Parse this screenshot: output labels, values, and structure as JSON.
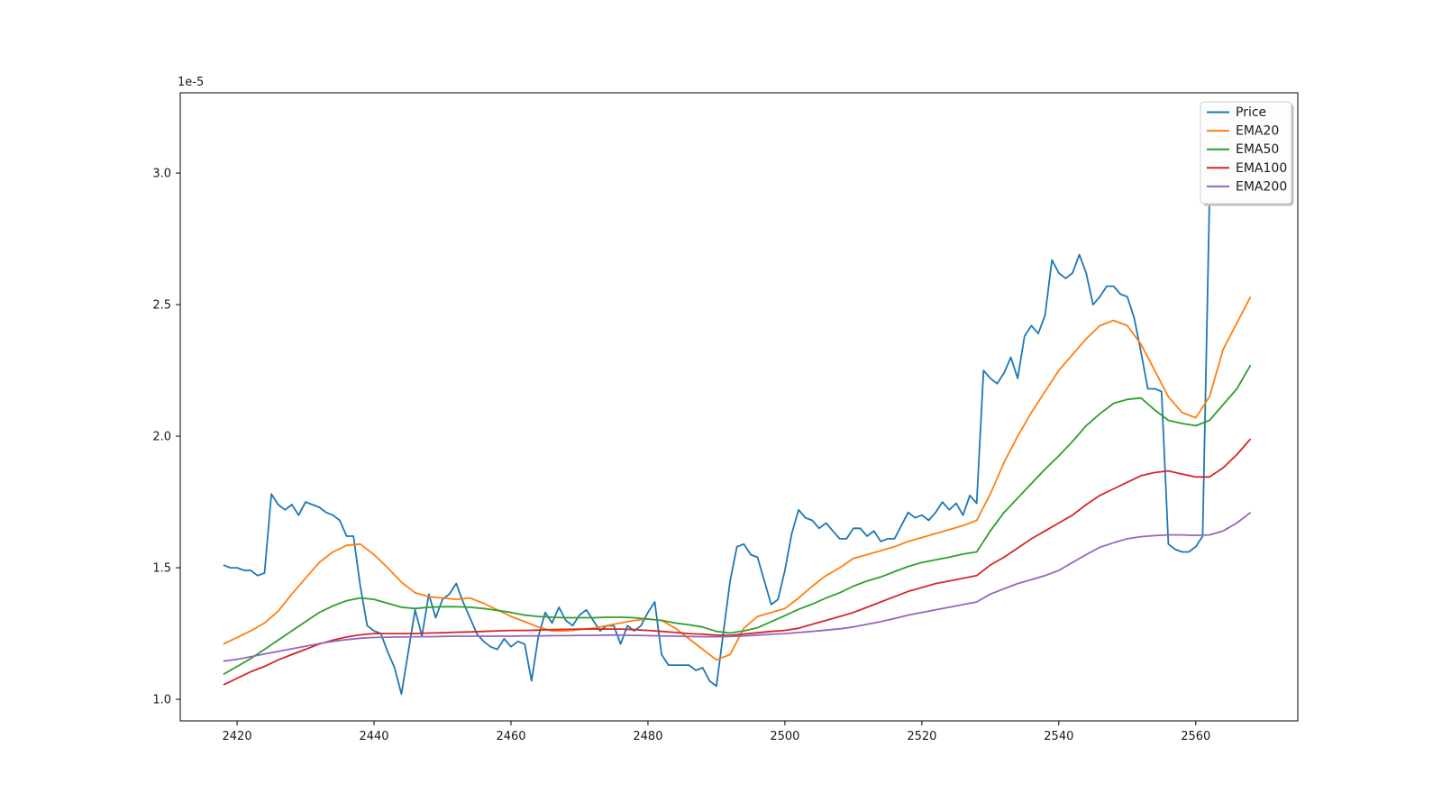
{
  "chart_data": {
    "type": "line",
    "title": "",
    "xlabel": "",
    "ylabel": "",
    "y_offset_label": "1e-5",
    "y_unit_multiplier": 1e-05,
    "grid": false,
    "xlim": [
      2411.7,
      2574.9
    ],
    "ylim": [
      0.918,
      3.305
    ],
    "xticks": [
      2420,
      2440,
      2460,
      2480,
      2500,
      2520,
      2540,
      2560
    ],
    "yticks": [
      1.0,
      1.5,
      2.0,
      2.5,
      3.0
    ],
    "legend": {
      "position": "upper right",
      "frame_color": "#cccccc",
      "background": "#ffffff"
    },
    "series": [
      {
        "name": "Price",
        "color": "#1f77b4",
        "x_start": 2418,
        "x_step": 1,
        "values": [
          1.51,
          1.5,
          1.5,
          1.49,
          1.49,
          1.47,
          1.48,
          1.78,
          1.74,
          1.72,
          1.74,
          1.7,
          1.75,
          1.74,
          1.73,
          1.71,
          1.7,
          1.68,
          1.62,
          1.62,
          1.43,
          1.28,
          1.26,
          1.25,
          1.18,
          1.12,
          1.02,
          1.18,
          1.34,
          1.24,
          1.4,
          1.31,
          1.38,
          1.4,
          1.44,
          1.37,
          1.31,
          1.25,
          1.22,
          1.2,
          1.19,
          1.23,
          1.2,
          1.22,
          1.21,
          1.07,
          1.24,
          1.33,
          1.29,
          1.35,
          1.3,
          1.28,
          1.32,
          1.34,
          1.3,
          1.26,
          1.28,
          1.28,
          1.21,
          1.28,
          1.26,
          1.28,
          1.33,
          1.37,
          1.17,
          1.13,
          1.13,
          1.13,
          1.13,
          1.11,
          1.12,
          1.07,
          1.05,
          1.25,
          1.45,
          1.58,
          1.59,
          1.55,
          1.54,
          1.45,
          1.36,
          1.38,
          1.49,
          1.63,
          1.72,
          1.69,
          1.68,
          1.65,
          1.67,
          1.64,
          1.61,
          1.61,
          1.65,
          1.65,
          1.62,
          1.64,
          1.6,
          1.61,
          1.61,
          1.66,
          1.71,
          1.69,
          1.7,
          1.68,
          1.71,
          1.75,
          1.72,
          1.745,
          1.7,
          1.775,
          1.745,
          2.25,
          2.22,
          2.2,
          2.24,
          2.3,
          2.22,
          2.38,
          2.42,
          2.39,
          2.46,
          2.67,
          2.62,
          2.6,
          2.62,
          2.69,
          2.62,
          2.5,
          2.53,
          2.57,
          2.57,
          2.54,
          2.53,
          2.45,
          2.32,
          2.18,
          2.18,
          2.17,
          1.59,
          1.57,
          1.56,
          1.56,
          1.58,
          1.62,
          2.9,
          2.92,
          2.89,
          2.93,
          2.91,
          2.93,
          2.95
        ]
      },
      {
        "name": "EMA20",
        "color": "#ff7f0e",
        "x_start": 2418,
        "x_step": 2,
        "values": [
          1.21,
          1.235,
          1.26,
          1.29,
          1.335,
          1.4,
          1.46,
          1.52,
          1.56,
          1.585,
          1.59,
          1.55,
          1.5,
          1.445,
          1.405,
          1.39,
          1.385,
          1.38,
          1.385,
          1.365,
          1.34,
          1.315,
          1.295,
          1.275,
          1.26,
          1.26,
          1.265,
          1.27,
          1.28,
          1.29,
          1.3,
          1.305,
          1.3,
          1.27,
          1.23,
          1.19,
          1.15,
          1.17,
          1.27,
          1.315,
          1.33,
          1.345,
          1.385,
          1.43,
          1.47,
          1.5,
          1.535,
          1.55,
          1.565,
          1.58,
          1.6,
          1.615,
          1.63,
          1.645,
          1.66,
          1.68,
          1.78,
          1.9,
          2.0,
          2.09,
          2.17,
          2.25,
          2.31,
          2.37,
          2.42,
          2.44,
          2.42,
          2.35,
          2.25,
          2.15,
          2.09,
          2.07,
          2.15,
          2.33,
          2.43,
          2.53
        ]
      },
      {
        "name": "EMA50",
        "color": "#2ca02c",
        "x_start": 2418,
        "x_step": 2,
        "values": [
          1.095,
          1.125,
          1.155,
          1.19,
          1.225,
          1.26,
          1.295,
          1.33,
          1.355,
          1.375,
          1.385,
          1.38,
          1.365,
          1.35,
          1.345,
          1.35,
          1.352,
          1.352,
          1.35,
          1.345,
          1.338,
          1.33,
          1.32,
          1.315,
          1.312,
          1.31,
          1.31,
          1.31,
          1.312,
          1.312,
          1.31,
          1.305,
          1.3,
          1.29,
          1.283,
          1.275,
          1.258,
          1.252,
          1.26,
          1.272,
          1.295,
          1.318,
          1.342,
          1.362,
          1.385,
          1.405,
          1.43,
          1.45,
          1.465,
          1.485,
          1.505,
          1.52,
          1.53,
          1.54,
          1.552,
          1.56,
          1.64,
          1.71,
          1.765,
          1.82,
          1.875,
          1.925,
          1.98,
          2.04,
          2.085,
          2.125,
          2.14,
          2.145,
          2.1,
          2.06,
          2.048,
          2.04,
          2.06,
          2.12,
          2.18,
          2.27
        ]
      },
      {
        "name": "EMA100",
        "color": "#d62728",
        "x_start": 2418,
        "x_step": 2,
        "values": [
          1.055,
          1.08,
          1.105,
          1.125,
          1.15,
          1.17,
          1.19,
          1.21,
          1.225,
          1.237,
          1.245,
          1.25,
          1.25,
          1.25,
          1.25,
          1.252,
          1.253,
          1.255,
          1.256,
          1.258,
          1.26,
          1.262,
          1.262,
          1.263,
          1.265,
          1.266,
          1.267,
          1.267,
          1.267,
          1.267,
          1.265,
          1.262,
          1.258,
          1.254,
          1.25,
          1.247,
          1.244,
          1.243,
          1.248,
          1.253,
          1.258,
          1.262,
          1.27,
          1.285,
          1.3,
          1.315,
          1.33,
          1.35,
          1.37,
          1.39,
          1.41,
          1.425,
          1.44,
          1.45,
          1.46,
          1.47,
          1.51,
          1.54,
          1.575,
          1.61,
          1.64,
          1.67,
          1.7,
          1.74,
          1.775,
          1.8,
          1.825,
          1.85,
          1.862,
          1.868,
          1.856,
          1.845,
          1.845,
          1.88,
          1.93,
          1.99
        ]
      },
      {
        "name": "EMA200",
        "color": "#9467bd",
        "x_start": 2418,
        "x_step": 2,
        "values": [
          1.145,
          1.152,
          1.162,
          1.172,
          1.182,
          1.192,
          1.202,
          1.212,
          1.22,
          1.227,
          1.232,
          1.235,
          1.236,
          1.237,
          1.238,
          1.238,
          1.239,
          1.24,
          1.24,
          1.24,
          1.24,
          1.24,
          1.241,
          1.241,
          1.242,
          1.242,
          1.243,
          1.243,
          1.244,
          1.244,
          1.243,
          1.242,
          1.241,
          1.24,
          1.239,
          1.238,
          1.238,
          1.239,
          1.241,
          1.244,
          1.247,
          1.25,
          1.254,
          1.258,
          1.263,
          1.268,
          1.275,
          1.285,
          1.295,
          1.307,
          1.32,
          1.33,
          1.34,
          1.35,
          1.36,
          1.37,
          1.4,
          1.42,
          1.44,
          1.455,
          1.47,
          1.49,
          1.52,
          1.55,
          1.578,
          1.595,
          1.61,
          1.618,
          1.622,
          1.625,
          1.625,
          1.623,
          1.625,
          1.64,
          1.67,
          1.71
        ]
      }
    ]
  }
}
